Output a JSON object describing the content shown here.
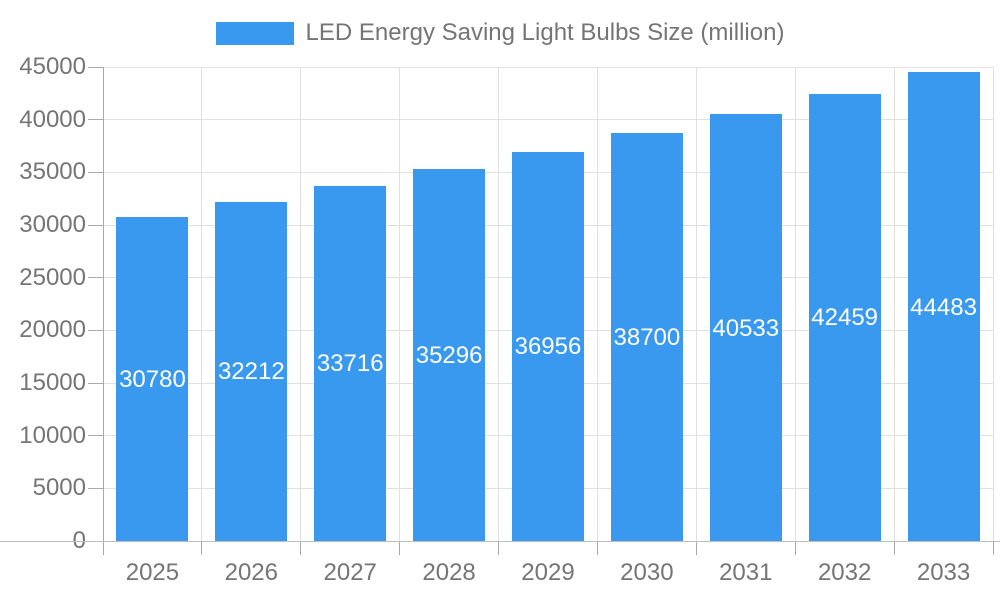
{
  "chart_data": {
    "type": "bar",
    "title": "LED Energy Saving Light Bulbs Size (million)",
    "categories": [
      "2025",
      "2026",
      "2027",
      "2028",
      "2029",
      "2030",
      "2031",
      "2032",
      "2033"
    ],
    "values": [
      30780,
      32212,
      33716,
      35296,
      36956,
      38700,
      40533,
      42459,
      44483
    ],
    "series": [
      {
        "name": "LED Energy Saving Light Bulbs Size (million)",
        "values": [
          30780,
          32212,
          33716,
          35296,
          36956,
          38700,
          40533,
          42459,
          44483
        ]
      }
    ],
    "xlabel": "",
    "ylabel": "",
    "ylim": [
      0,
      45000
    ],
    "yticks": [
      0,
      5000,
      10000,
      15000,
      20000,
      25000,
      30000,
      35000,
      40000,
      45000
    ],
    "grid": true,
    "legend_position": "top-center",
    "value_labels": "inside-center",
    "colors": {
      "bar": "#3899EF",
      "value_label": "#ffffff",
      "axis_text": "#757575",
      "gridline": "#e0e0e0",
      "axis_line": "#bdbdbd",
      "tick_line": "#aaaaaa",
      "background": "#ffffff"
    }
  }
}
